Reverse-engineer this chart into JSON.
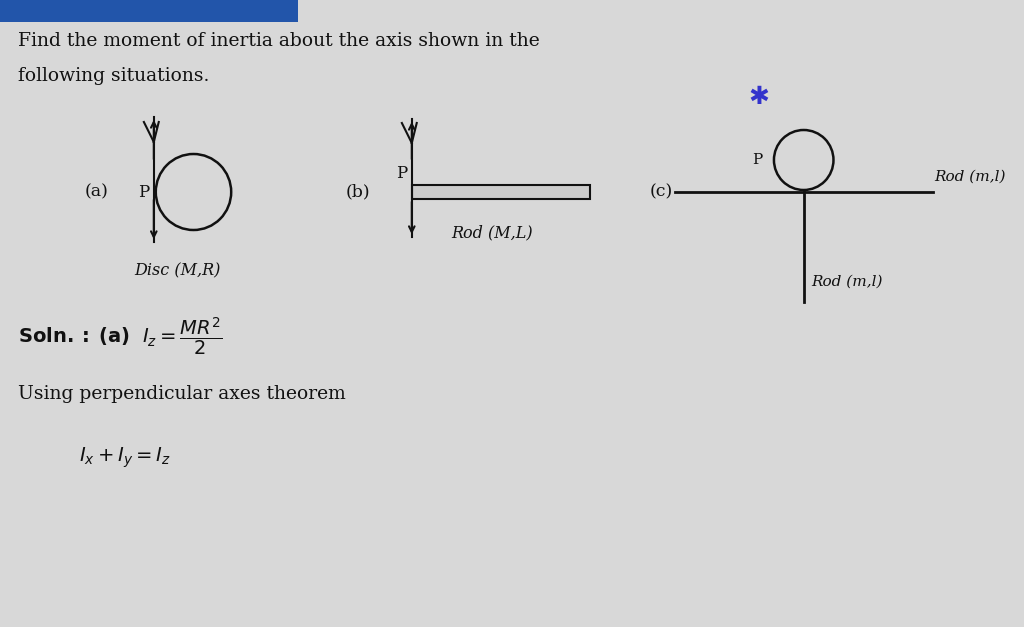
{
  "bg_color": "#d8d8d8",
  "title_line1": "Find the moment of inertia about the axis shown in the",
  "title_line2": "following situations.",
  "label_a": "(a)",
  "label_b": "(b)",
  "label_c": "(c)",
  "disc_label": "Disc (M,R)",
  "rod_b_label": "Rod (M,L)",
  "rod_c1_label": "Rod (m,l)",
  "rod_c2_label": "Rod (m,l)",
  "point_p": "P",
  "soln_line1": "Soln.: (a) $I_z = \\dfrac{MR^2}{2}$",
  "soln_line2": "Using perpendicular axes theorem",
  "soln_line3": "$I_x + I_y = I_z$",
  "text_color": "#111111",
  "diagram_color": "#111111",
  "star_color": "#3333cc",
  "axis_arrow_color": "#111111"
}
